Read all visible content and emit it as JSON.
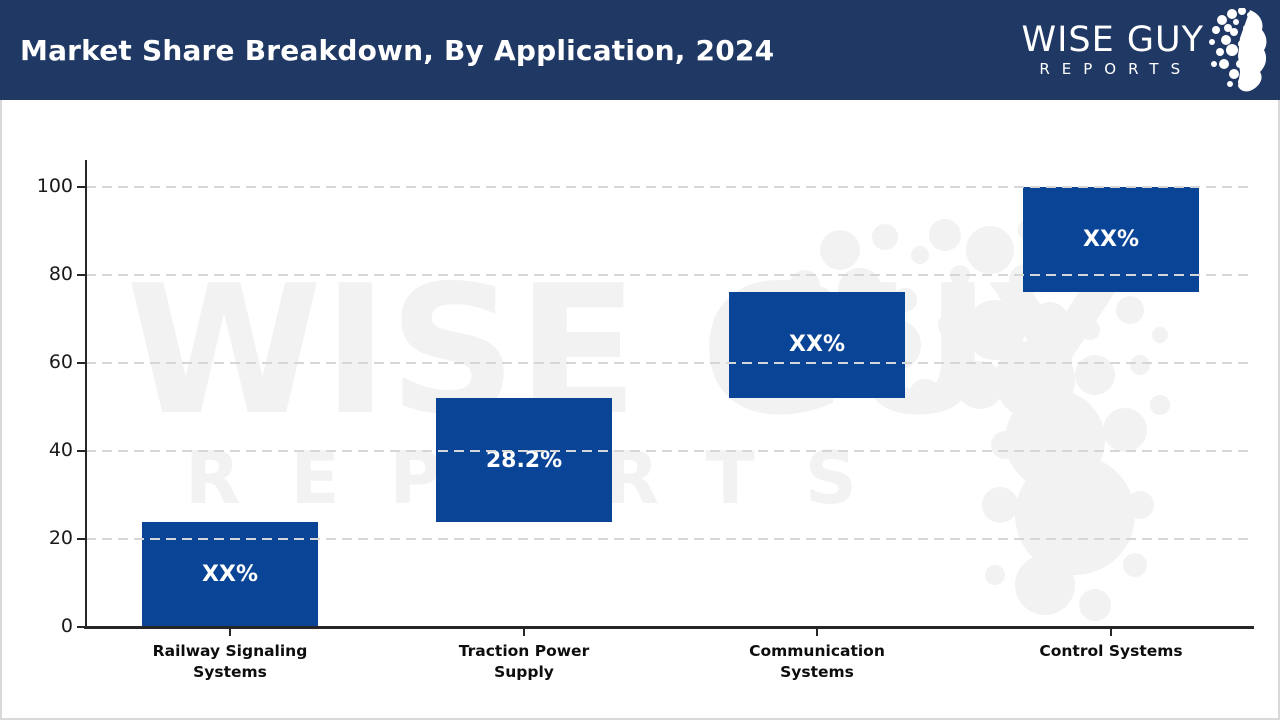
{
  "header": {
    "title": "Market Share Breakdown, By Application, 2024",
    "logo": {
      "line1": "WISE GUY",
      "line2": "REPORTS"
    }
  },
  "watermark": {
    "line1": "WISE GUY",
    "line2": "REPORTS"
  },
  "colors": {
    "header_bg": "#203864",
    "bar": "#0a4496",
    "axis": "#262626",
    "grid": "#d6d6d6",
    "watermark": "#f2f2f2",
    "bar_label_text": "#ffffff"
  },
  "chart_data": {
    "type": "bar",
    "subtype": "waterfall-floating-bars",
    "title": "Market Share Breakdown, By Application, 2024",
    "categories": [
      "Railway Signaling\nSystems",
      "Traction Power\nSupply",
      "Communication\nSystems",
      "Control Systems"
    ],
    "bars": [
      {
        "category": "Railway Signaling Systems",
        "base": 0,
        "value": 23.8,
        "top": 23.8,
        "display": "XX%"
      },
      {
        "category": "Traction Power Supply",
        "base": 23.8,
        "value": 28.2,
        "top": 52.0,
        "display": "28.2%"
      },
      {
        "category": "Communication Systems",
        "base": 52.0,
        "value": 24.2,
        "top": 76.2,
        "display": "XX%"
      },
      {
        "category": "Control Systems",
        "base": 76.2,
        "value": 23.8,
        "top": 100.0,
        "display": "XX%"
      }
    ],
    "yticks": [
      0,
      20,
      40,
      60,
      80,
      100
    ],
    "ylim": [
      0,
      106
    ],
    "xlabel": "",
    "ylabel": "",
    "grid": "horizontal-dashed",
    "grid_above_bars": true,
    "legend": "none",
    "bar_color": "#0a4496"
  }
}
